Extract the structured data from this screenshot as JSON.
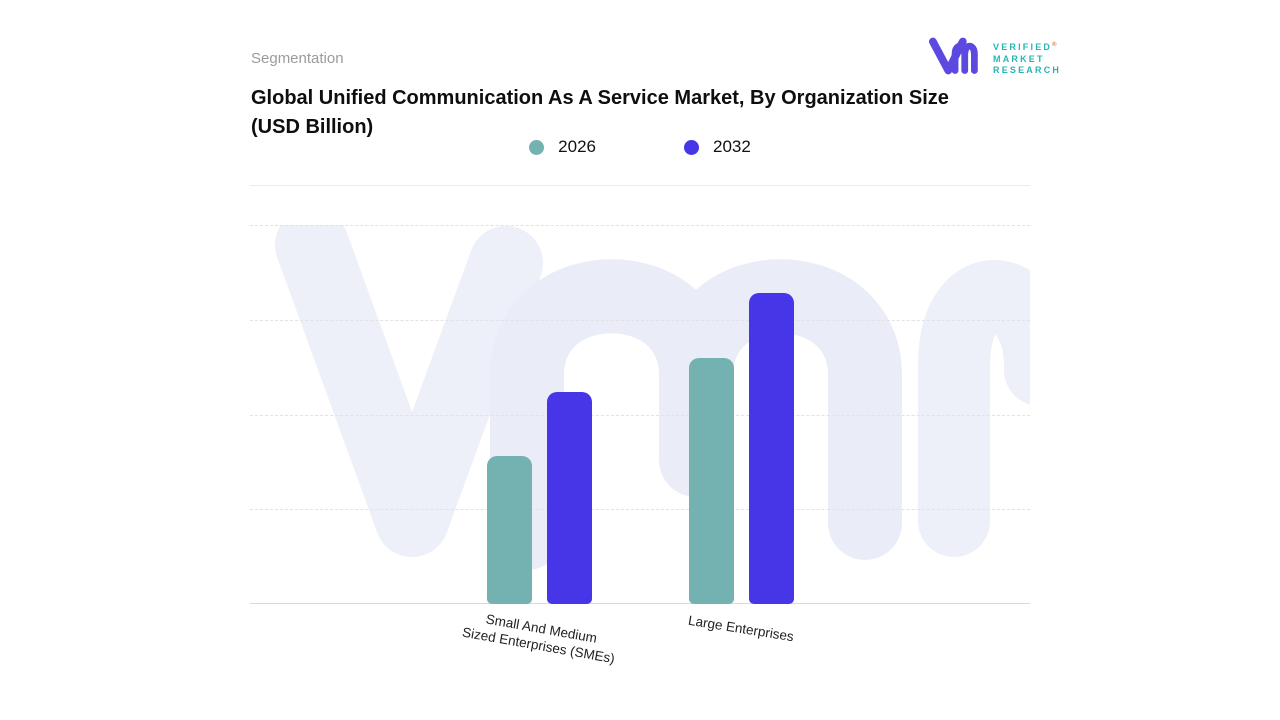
{
  "header": {
    "section_label": "Segmentation",
    "title_lines": [
      "Global Unified Communication As A Service Market, By Organization Size",
      "(USD Billion)"
    ]
  },
  "logo": {
    "lines": [
      "VERIFIED",
      "MARKET",
      "RESEARCH"
    ],
    "registered": "®",
    "mark_color": "#5b49e0",
    "text_color": "#2ab4b4"
  },
  "chart_data": {
    "type": "bar",
    "title": "Global Unified Communication As A Service Market, By Organization Size (USD Billion)",
    "categories": [
      {
        "label": "Small And Medium Sized Enterprises (SMEs)",
        "lines": [
          "Small And Medium",
          "Sized Enterprises (SMEs)"
        ]
      },
      {
        "label": "Large Enterprises",
        "lines": [
          "Large Enterprises"
        ]
      }
    ],
    "series": [
      {
        "name": "2026",
        "color": "#74b1b1",
        "values": [
          3.9,
          6.5
        ]
      },
      {
        "name": "2032",
        "color": "#4636e8",
        "values": [
          5.6,
          8.2
        ]
      }
    ],
    "ylim": [
      0,
      10
    ],
    "yaxis_visible": false,
    "grid": "horizontal-dashed",
    "legend_position": "top-center",
    "watermark": "vmr"
  }
}
